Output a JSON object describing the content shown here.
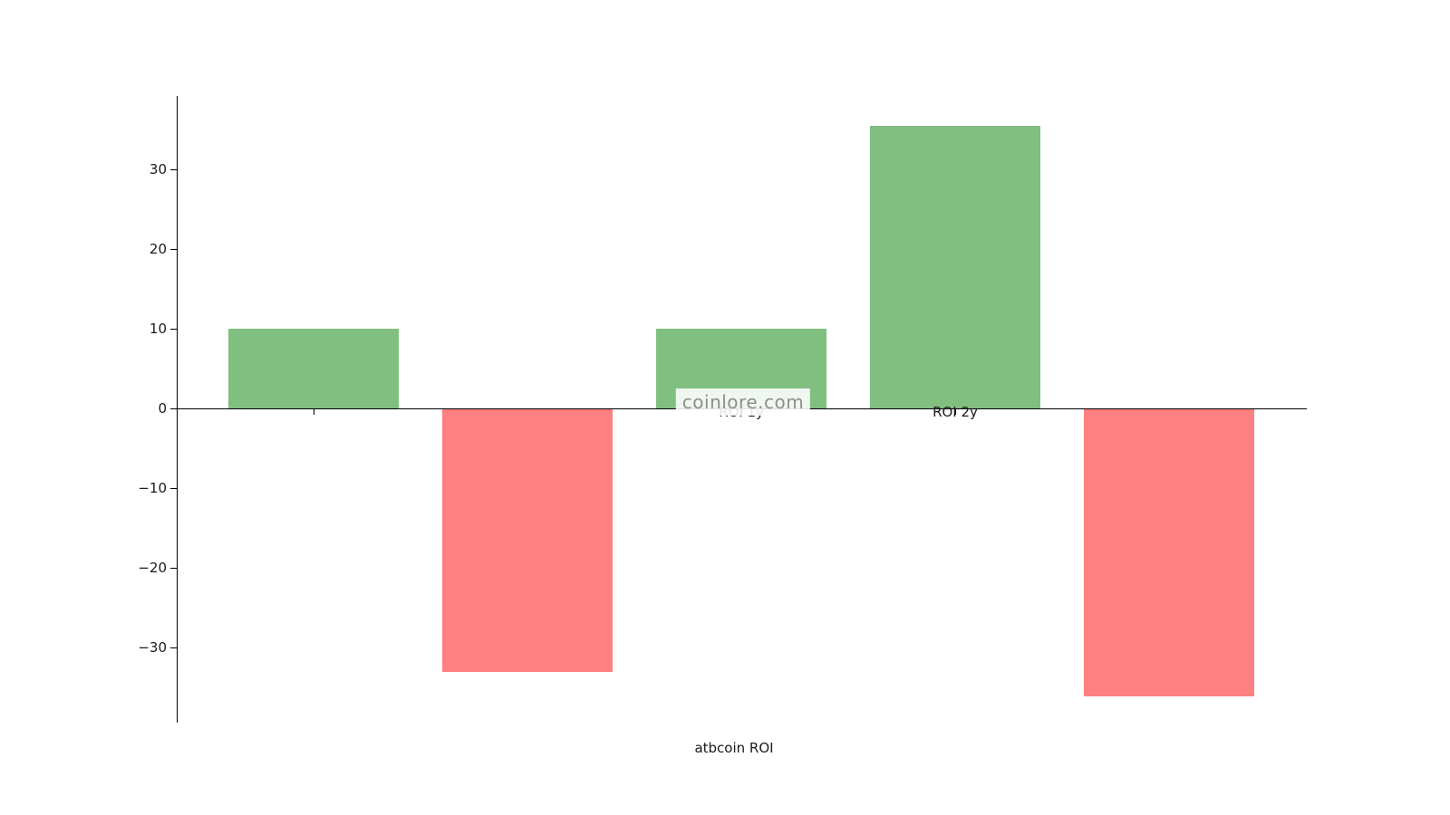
{
  "chart_data": {
    "type": "bar",
    "title": "atbcoin ROI",
    "watermark": "coinlore.com",
    "categories": [
      "",
      "",
      "ROI 1y",
      "ROI 2y",
      ""
    ],
    "values": [
      10,
      -33,
      10,
      35.5,
      -36
    ],
    "yticks": {
      "values": [
        30,
        20,
        10,
        0,
        -10,
        -20,
        -30
      ],
      "labels": [
        "30",
        "20",
        "10",
        "0",
        "−10",
        "−20",
        "−30"
      ]
    },
    "ylim": [
      -39.4,
      39.2
    ],
    "grid": false,
    "legend": null,
    "xlabel": "",
    "ylabel": "",
    "positive_color": "#80bf80",
    "negative_color": "#ff8080",
    "axis_color": "#000000",
    "watermark_color": "#8e8e8e"
  }
}
